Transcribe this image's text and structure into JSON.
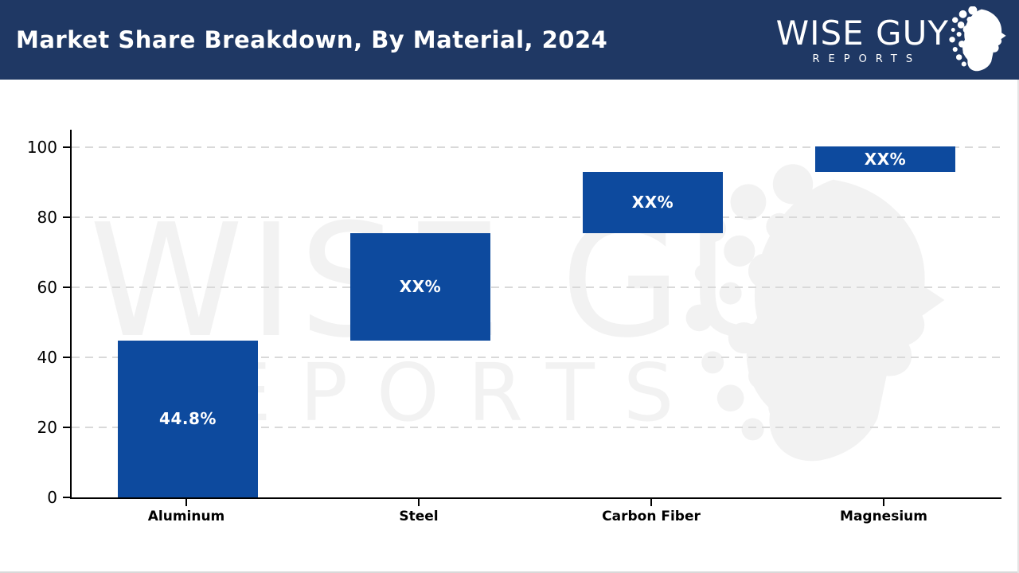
{
  "header": {
    "title": "Market Share Breakdown, By Material, 2024",
    "logo": {
      "name": "WISE GUY",
      "sub": "REPORTS"
    }
  },
  "watermark": {
    "name": "WISE GUY",
    "sub": "REPORTS"
  },
  "chart_data": {
    "type": "bar",
    "variant": "waterfall",
    "title": "Market Share Breakdown, By Material, 2024",
    "categories": [
      "Aluminum",
      "Steel",
      "Carbon Fiber",
      "Magnesium"
    ],
    "segments": [
      {
        "category": "Aluminum",
        "start": 0,
        "end": 44.8,
        "label": "44.8%"
      },
      {
        "category": "Steel",
        "start": 44.8,
        "end": 75.5,
        "label": "XX%"
      },
      {
        "category": "Carbon Fiber",
        "start": 75.5,
        "end": 93.0,
        "label": "XX%"
      },
      {
        "category": "Magnesium",
        "start": 93.0,
        "end": 100.2,
        "label": "XX%"
      }
    ],
    "yticks": [
      0,
      20,
      40,
      60,
      80,
      100
    ],
    "ylim": [
      0,
      105
    ],
    "xlabel": "",
    "ylabel": "",
    "grid": {
      "horizontal": true,
      "style": "dashed"
    },
    "legend": "none",
    "bar_width_fraction": 0.6
  },
  "colors": {
    "header_bg": "#1f3864",
    "bar": "#0d4a9e",
    "grid": "#d9d9d9",
    "axis": "#000000",
    "watermark": "#f2f2f2",
    "title_text": "#ffffff",
    "bar_label_text": "#ffffff"
  }
}
